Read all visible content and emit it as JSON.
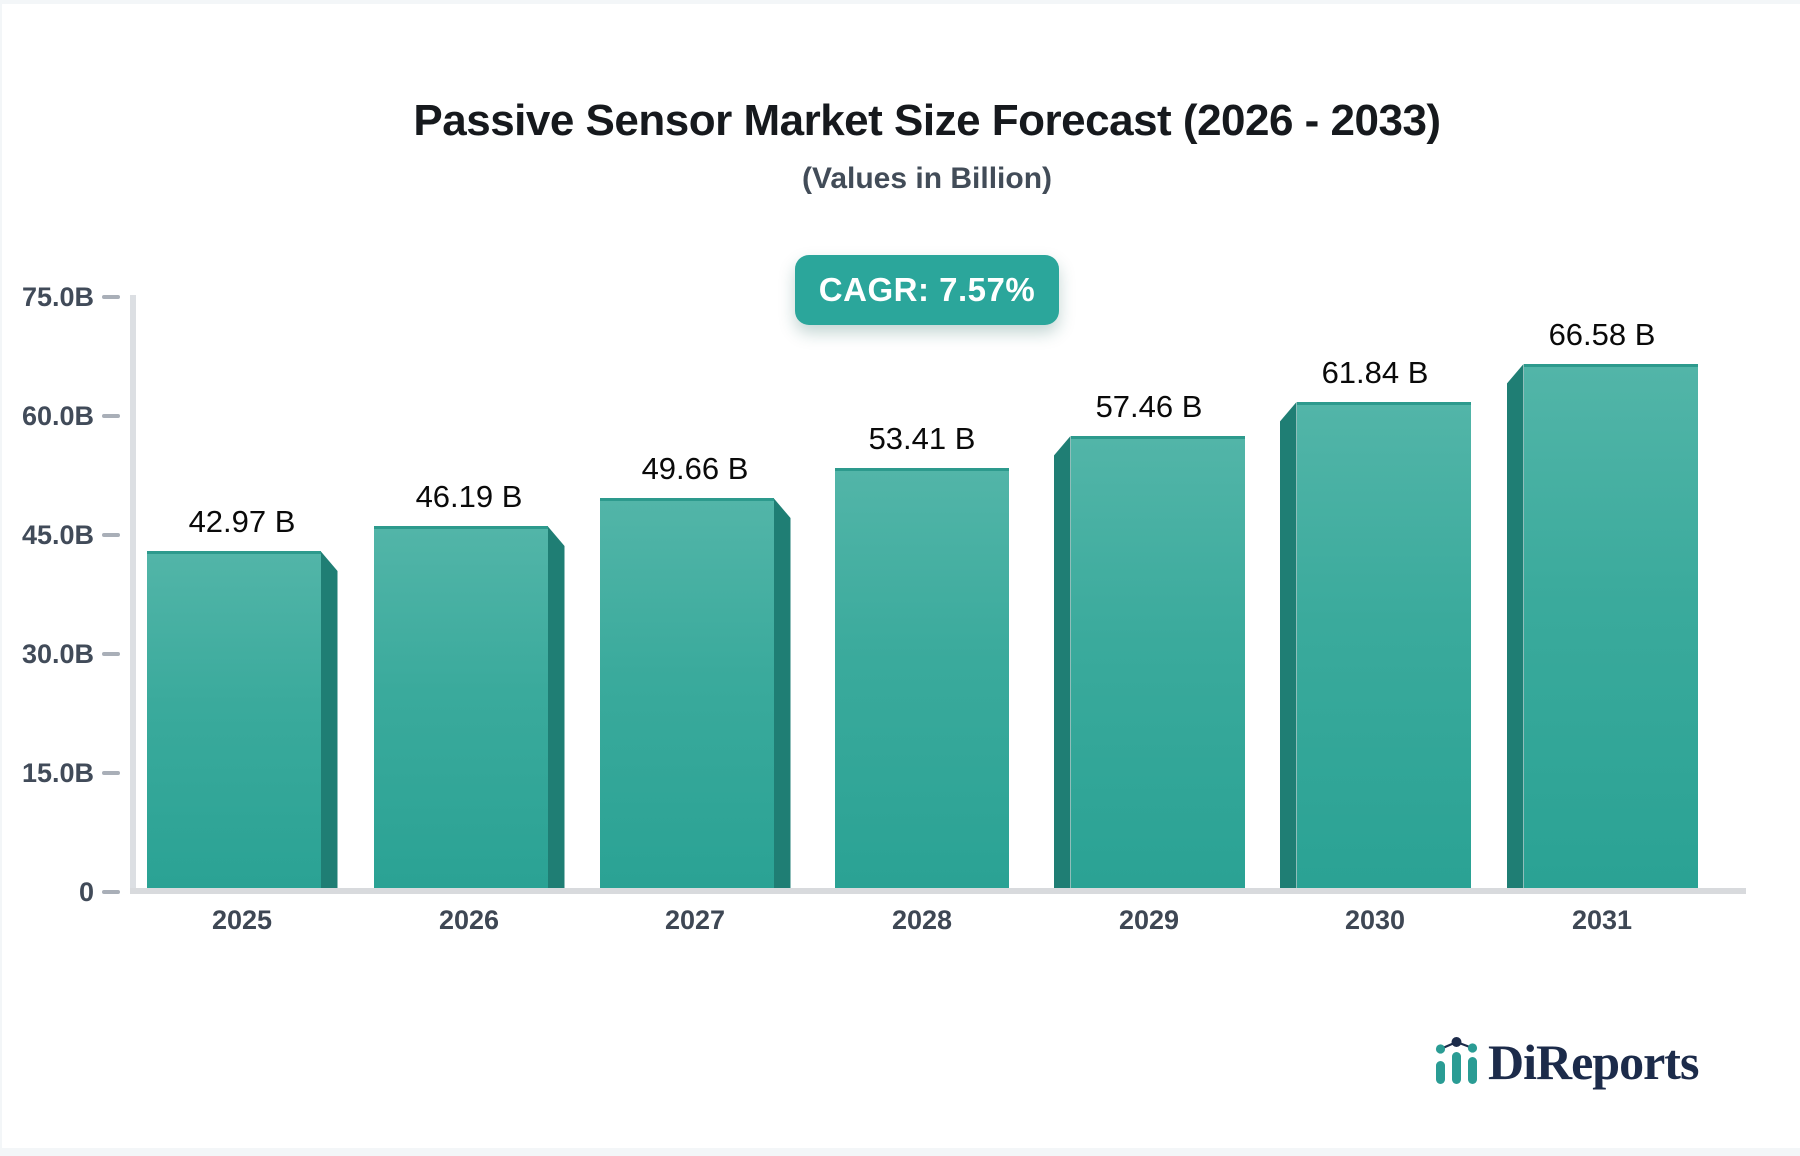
{
  "header": {
    "title": "Passive Sensor Market Size Forecast (2026 - 2033)",
    "subtitle": "(Values in Billion)",
    "cagr_badge": "CAGR: 7.57%"
  },
  "chart_data": {
    "type": "bar",
    "title": "Passive Sensor Market Size Forecast (2026 - 2033)",
    "subtitle": "(Values in Billion)",
    "cagr": "7.57%",
    "categories": [
      "2025",
      "2026",
      "2027",
      "2028",
      "2029",
      "2030",
      "2031"
    ],
    "values": [
      42.97,
      46.19,
      49.66,
      53.41,
      57.46,
      61.84,
      66.58
    ],
    "value_labels": [
      "42.97 B",
      "46.19 B",
      "49.66 B",
      "53.41 B",
      "57.46 B",
      "61.84 B",
      "66.58 B"
    ],
    "xlabel": "",
    "ylabel": "",
    "ylim": [
      0,
      75
    ],
    "ytick_values": [
      75,
      60,
      45,
      30,
      15,
      0
    ],
    "ytick_labels": [
      "75.0B",
      "60.0B",
      "45.0B",
      "30.0B",
      "15.0B",
      "0"
    ],
    "grid": "off",
    "legend": "none",
    "style": "3d-perspective-bars",
    "colors": {
      "bar_top": "#52b5a8",
      "bar_bottom": "#2aa294",
      "bar_side": "#1f7e74",
      "badge_bg": "#2ba69b",
      "axis_line": "#d9dbdf",
      "tick_text": "#414b59",
      "label_text": "#0a0a0a"
    }
  },
  "logo": {
    "text": "DiReports",
    "icon": "mini-bar-line-chart-icon",
    "icon_bar_color": "#2a9c94",
    "text_color": "#1c2b4a"
  }
}
